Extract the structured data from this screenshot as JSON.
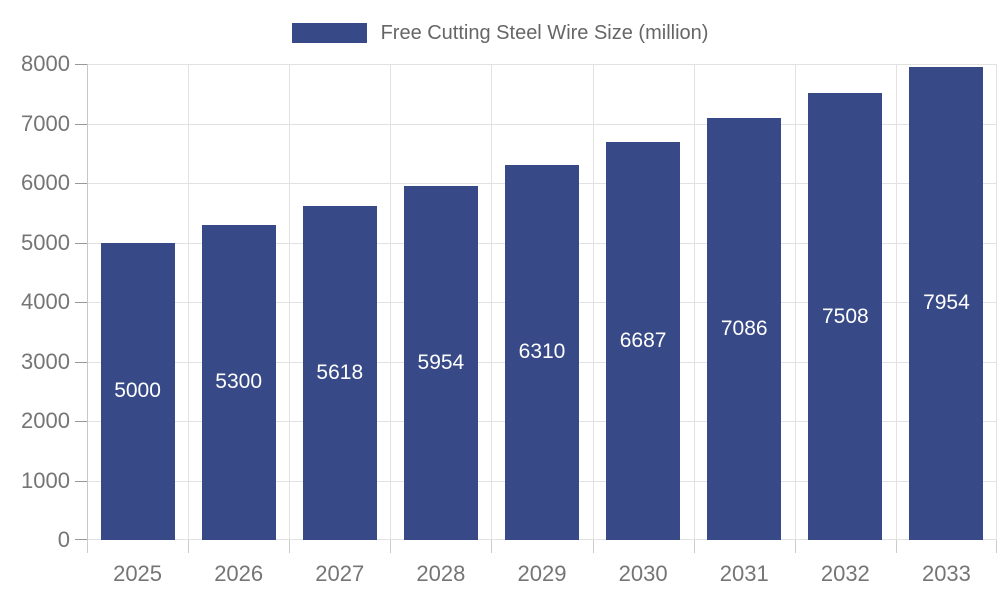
{
  "chart_data": {
    "type": "bar",
    "title": "Free Cutting Steel Wire Size (million)",
    "categories": [
      "2025",
      "2026",
      "2027",
      "2028",
      "2029",
      "2030",
      "2031",
      "2032",
      "2033"
    ],
    "values": [
      5000,
      5300,
      5618,
      5954,
      6310,
      6687,
      7086,
      7508,
      7954
    ],
    "xlabel": "",
    "ylabel": "",
    "ylim": [
      0,
      8000
    ],
    "ytick_step": 1000,
    "grid": true,
    "legend_position": "top",
    "value_labels": "inside-center",
    "colors": {
      "bar": "#374a87",
      "value_label": "#ffffff",
      "axis_text": "#757575",
      "legend_text": "#666666",
      "gridline": "#e2e2e2",
      "axis_line": "#c6c6c6",
      "y_tick": "#999999",
      "x_tick": "#cccccc",
      "background": "#ffffff"
    }
  }
}
